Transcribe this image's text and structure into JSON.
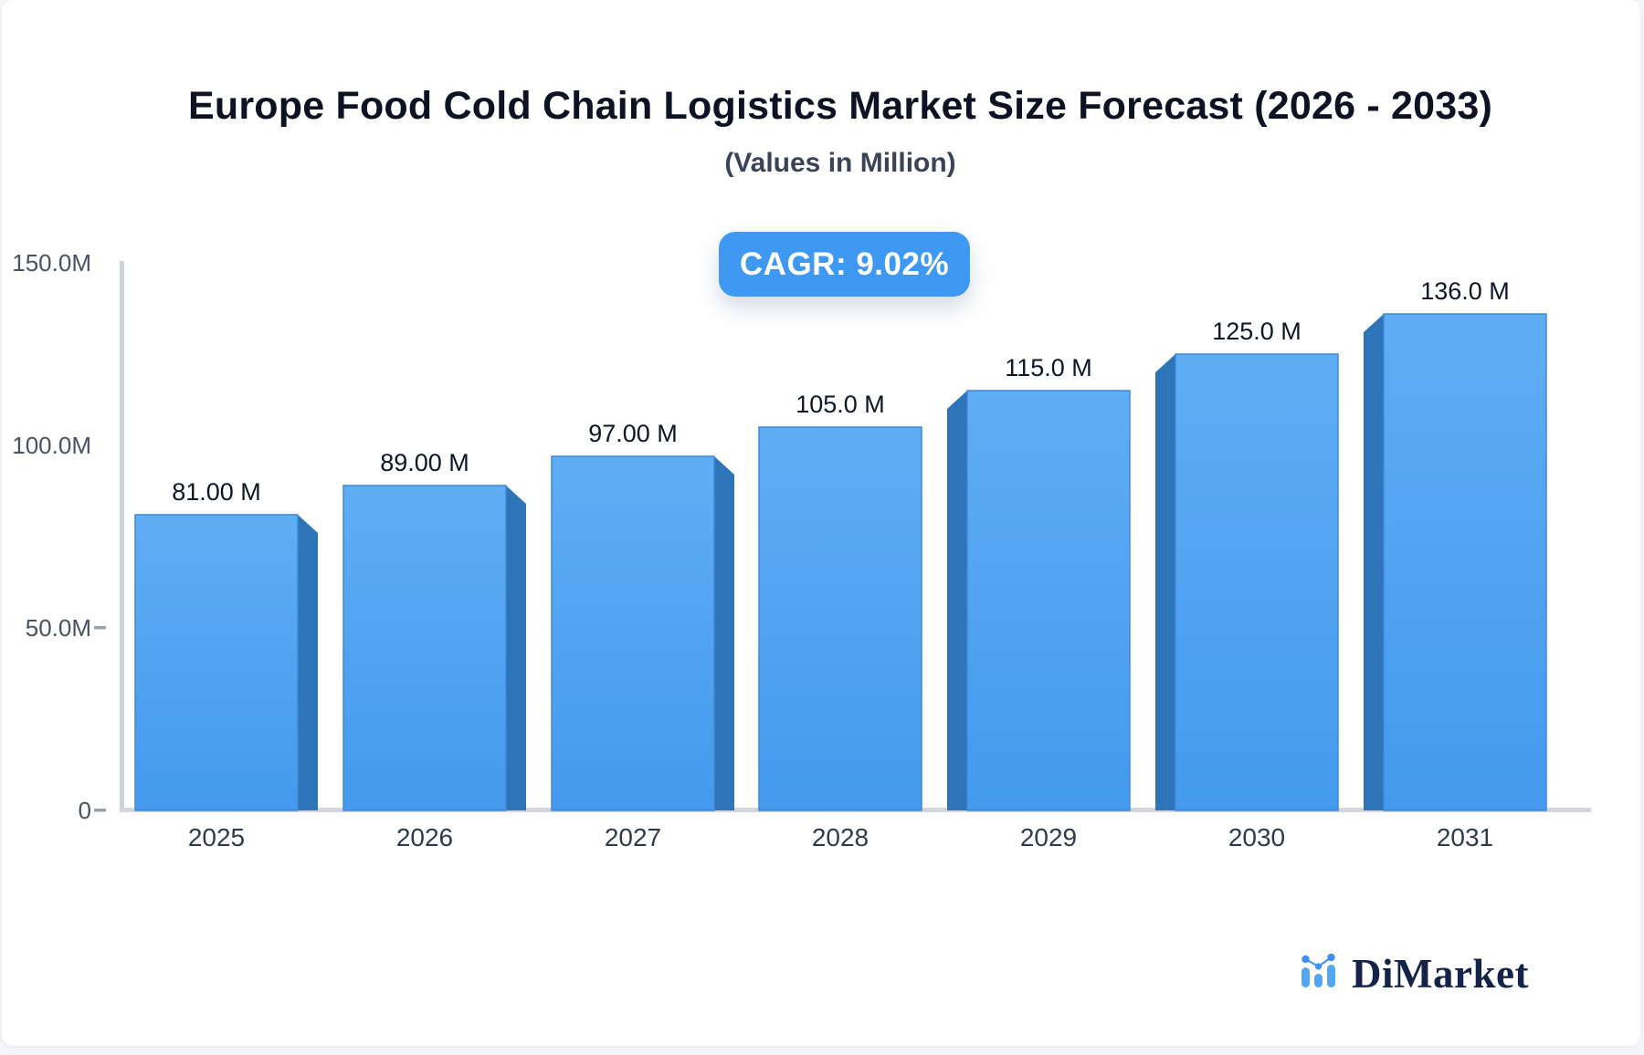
{
  "header": {
    "title": "Europe Food Cold Chain Logistics Market Size Forecast (2026 - 2033)",
    "subtitle": "(Values in Million)",
    "cagr_label": "CAGR: 9.02%"
  },
  "chart_data": {
    "type": "bar",
    "title": "Europe Food Cold Chain Logistics Market Size Forecast (2026 - 2033)",
    "subtitle": "(Values in Million)",
    "unit": "Million",
    "categories": [
      "2025",
      "2026",
      "2027",
      "2028",
      "2029",
      "2030",
      "2031"
    ],
    "values": [
      81,
      89,
      97,
      105,
      115,
      125,
      136
    ],
    "value_labels": [
      "81.00 M",
      "89.00 M",
      "97.00 M",
      "105.0 M",
      "115.0 M",
      "125.0 M",
      "136.0 M"
    ],
    "ylim": [
      0,
      150
    ],
    "ytick_values": [
      150,
      100,
      50,
      0
    ],
    "ytick_labels": [
      "150.0M",
      "100.0M",
      "50.0M",
      "0"
    ],
    "xlabel": "",
    "ylabel": "",
    "grid": false,
    "legend": false,
    "cagr": "9.02%",
    "colors": {
      "bar_face_top": "#5fadf4",
      "bar_face_bottom": "#449aee",
      "bar_face_stroke": "#3f88d8",
      "bar_side": "#2e74b8",
      "axis_line": "#ced2da",
      "baseline": "#d3d6dd",
      "tick_dash": "#9ba1ac",
      "ytick_text": "#4a5260",
      "xtick_text": "#313a49",
      "value_text": "#0e1626"
    }
  },
  "branding": {
    "logo_text": "DiMarket",
    "logo_icon": "mini-bar-chart-icon"
  }
}
